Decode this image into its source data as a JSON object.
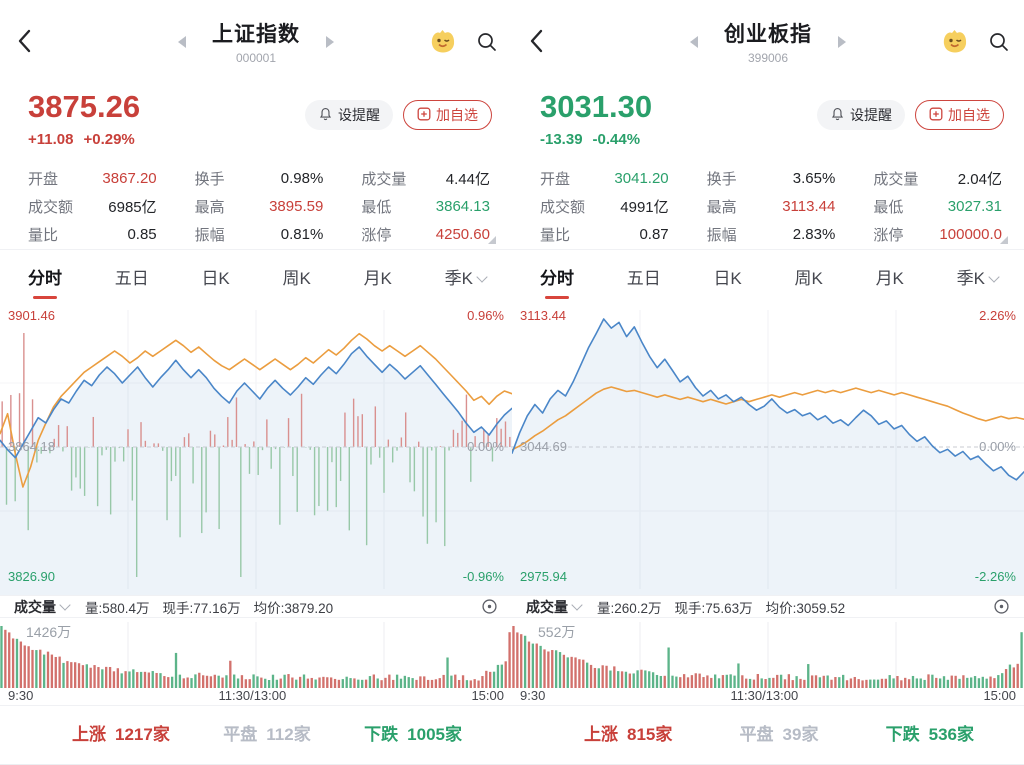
{
  "colors": {
    "red": "#c8403a",
    "green": "#2aa06b",
    "dark": "#222428",
    "label_gray": "#72757e",
    "blue_line": "#4a86c8",
    "orange_line": "#eb9d3f",
    "flow_red": "#d9908f",
    "flow_green": "#98c8a8",
    "vol_red": "#d2716c",
    "vol_green": "#5cb489",
    "tab_underline": "#d8453c"
  },
  "panels": [
    {
      "header": {
        "title": "上证指数",
        "code": "000001"
      },
      "price": {
        "value": "3875.26",
        "change": "+11.08",
        "change_pct": "+0.29%",
        "color": "red"
      },
      "actions": {
        "alert_label": "设提醒",
        "watch_label": "加自选"
      },
      "stats": [
        {
          "label": "开盘",
          "value": "3867.20",
          "color": "red"
        },
        {
          "label": "换手",
          "value": "0.98%",
          "color": "dark"
        },
        {
          "label": "成交量",
          "value": "4.44亿",
          "color": "dark"
        },
        {
          "label": "成交额",
          "value": "6985亿",
          "color": "dark"
        },
        {
          "label": "最高",
          "value": "3895.59",
          "color": "red"
        },
        {
          "label": "最低",
          "value": "3864.13",
          "color": "green"
        },
        {
          "label": "量比",
          "value": "0.85",
          "color": "dark"
        },
        {
          "label": "振幅",
          "value": "0.81%",
          "color": "dark"
        },
        {
          "label": "涨停",
          "value": "4250.60",
          "color": "red"
        }
      ],
      "tabs": [
        {
          "label": "分时"
        },
        {
          "label": "五日"
        },
        {
          "label": "日K"
        },
        {
          "label": "周K"
        },
        {
          "label": "月K"
        },
        {
          "label": "季K"
        }
      ],
      "chart": {
        "type": "line",
        "top_label": "3901.46",
        "top_pct": "0.96%",
        "mid_label": "3864.18",
        "mid_pct": "0.00%",
        "bottom_label": "3826.90",
        "bottom_pct": "-0.96%",
        "scale_max": 0.96,
        "x_range": [
          "9:30",
          "15:00"
        ],
        "price_pct": [
          0.05,
          -0.02,
          -0.08,
          0.02,
          0.12,
          0.22,
          0.18,
          0.28,
          0.36,
          0.33,
          0.42,
          0.5,
          0.46,
          0.54,
          0.6,
          0.55,
          0.48,
          0.54,
          0.6,
          0.52,
          0.45,
          0.52,
          0.58,
          0.65,
          0.58,
          0.52,
          0.58,
          0.52,
          0.44,
          0.38,
          0.33,
          0.42,
          0.48,
          0.42,
          0.36,
          0.44,
          0.5,
          0.44,
          0.39,
          0.45,
          0.52,
          0.47,
          0.54,
          0.6,
          0.55,
          0.62,
          0.7,
          0.75,
          0.68,
          0.62,
          0.56,
          0.62,
          0.57,
          0.51,
          0.56,
          0.61,
          0.54,
          0.47,
          0.4,
          0.33,
          0.26,
          0.18,
          0.11,
          0.15,
          0.09,
          0.17,
          0.24,
          0.29
        ],
        "avg_pct": [
          0.1,
          0.25,
          -0.05,
          -0.3,
          -0.15,
          0.05,
          0.18,
          0.3,
          0.38,
          0.44,
          0.5,
          0.56,
          0.6,
          0.64,
          0.68,
          0.72,
          0.68,
          0.63,
          0.67,
          0.72,
          0.68,
          0.72,
          0.76,
          0.8,
          0.76,
          0.71,
          0.75,
          0.7,
          0.65,
          0.61,
          0.58,
          0.62,
          0.66,
          0.62,
          0.58,
          0.62,
          0.66,
          0.62,
          0.58,
          0.62,
          0.67,
          0.63,
          0.68,
          0.73,
          0.69,
          0.74,
          0.8,
          0.85,
          0.81,
          0.76,
          0.72,
          0.76,
          0.72,
          0.68,
          0.72,
          0.76,
          0.71,
          0.66,
          0.6,
          0.54,
          0.48,
          0.42,
          0.35,
          0.38,
          0.32,
          0.38,
          0.42,
          0.4
        ],
        "flow": {
          "show": true,
          "seed": 9,
          "count": 118
        }
      },
      "volume_row": {
        "indicator": "成交量",
        "vol": "量:580.4万",
        "lots": "现手:77.16万",
        "avg": "均价:3879.20"
      },
      "volume_chart": {
        "peak_label": "1426万",
        "seed": 11,
        "count": 132,
        "first_color": "green",
        "last_color": "red"
      },
      "time_axis": [
        "9:30",
        "11:30/13:00",
        "15:00"
      ],
      "breadth": {
        "up_label": "上涨",
        "up_value": "1217家",
        "flat_label": "平盘",
        "flat_value": "112家",
        "down_label": "下跌",
        "down_value": "1005家"
      }
    },
    {
      "header": {
        "title": "创业板指",
        "code": "399006"
      },
      "price": {
        "value": "3031.30",
        "change": "-13.39",
        "change_pct": "-0.44%",
        "color": "green"
      },
      "actions": {
        "alert_label": "设提醒",
        "watch_label": "加自选"
      },
      "stats": [
        {
          "label": "开盘",
          "value": "3041.20",
          "color": "green"
        },
        {
          "label": "换手",
          "value": "3.65%",
          "color": "dark"
        },
        {
          "label": "成交量",
          "value": "2.04亿",
          "color": "dark"
        },
        {
          "label": "成交额",
          "value": "4991亿",
          "color": "dark"
        },
        {
          "label": "最高",
          "value": "3113.44",
          "color": "red"
        },
        {
          "label": "最低",
          "value": "3027.31",
          "color": "green"
        },
        {
          "label": "量比",
          "value": "0.87",
          "color": "dark"
        },
        {
          "label": "振幅",
          "value": "2.83%",
          "color": "dark"
        },
        {
          "label": "涨停",
          "value": "100000.0",
          "color": "red"
        }
      ],
      "tabs": [
        {
          "label": "分时"
        },
        {
          "label": "五日"
        },
        {
          "label": "日K"
        },
        {
          "label": "周K"
        },
        {
          "label": "月K"
        },
        {
          "label": "季K"
        }
      ],
      "chart": {
        "type": "line",
        "top_label": "3113.44",
        "top_pct": "2.26%",
        "mid_label": "3044.69",
        "mid_pct": "0.00%",
        "bottom_label": "2975.94",
        "bottom_pct": "-2.26%",
        "scale_max": 2.26,
        "x_range": [
          "9:30",
          "15:00"
        ],
        "price_pct": [
          -0.11,
          0.25,
          0.55,
          0.75,
          0.6,
          0.85,
          1.0,
          0.9,
          1.15,
          1.45,
          1.75,
          2.0,
          2.26,
          2.1,
          2.2,
          1.95,
          2.12,
          1.85,
          1.6,
          1.4,
          1.55,
          1.35,
          1.15,
          1.25,
          1.05,
          0.9,
          1.0,
          0.85,
          0.92,
          0.8,
          0.88,
          0.75,
          0.65,
          0.72,
          0.85,
          0.7,
          0.6,
          0.66,
          0.55,
          0.6,
          0.48,
          0.55,
          0.42,
          0.48,
          0.38,
          0.52,
          0.65,
          0.55,
          0.4,
          0.46,
          0.32,
          0.38,
          0.22,
          0.1,
          0.18,
          0.02,
          -0.1,
          -0.04,
          -0.16,
          -0.08,
          -0.22,
          -0.16,
          -0.3,
          -0.42,
          -0.35,
          -0.5,
          -0.58,
          -0.44
        ],
        "avg_pct": [
          -0.05,
          0.02,
          0.1,
          0.2,
          0.28,
          0.38,
          0.48,
          0.55,
          0.65,
          0.75,
          0.85,
          0.95,
          1.02,
          1.06,
          1.02,
          0.98,
          1.0,
          0.96,
          0.92,
          0.88,
          0.92,
          0.88,
          0.84,
          0.88,
          0.84,
          0.8,
          0.84,
          0.8,
          0.76,
          0.8,
          0.84,
          0.8,
          0.84,
          0.88,
          0.92,
          0.88,
          0.92,
          0.96,
          0.92,
          0.96,
          1.0,
          0.96,
          1.0,
          0.96,
          1.0,
          1.04,
          1.0,
          0.96,
          1.0,
          0.96,
          0.92,
          0.96,
          0.92,
          0.88,
          0.84,
          0.8,
          0.76,
          0.72,
          0.66,
          0.6,
          0.55,
          0.5,
          0.46,
          0.5,
          0.54,
          0.5,
          0.52,
          0.49
        ],
        "flow": {
          "show": false,
          "seed": 0,
          "count": 0
        }
      },
      "volume_row": {
        "indicator": "成交量",
        "vol": "量:260.2万",
        "lots": "现手:75.63万",
        "avg": "均价:3059.52"
      },
      "volume_chart": {
        "peak_label": "552万",
        "seed": 23,
        "count": 132,
        "first_color": "red",
        "last_color": "green"
      },
      "time_axis": [
        "9:30",
        "11:30/13:00",
        "15:00"
      ],
      "breadth": {
        "up_label": "上涨",
        "up_value": "815家",
        "flat_label": "平盘",
        "flat_value": "39家",
        "down_label": "下跌",
        "down_value": "536家"
      }
    }
  ]
}
